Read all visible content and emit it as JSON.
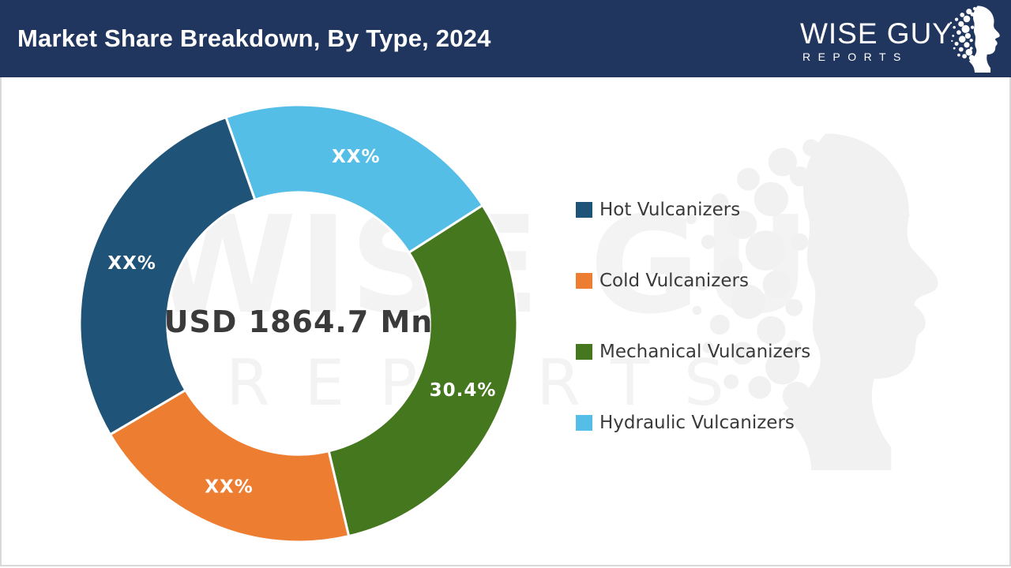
{
  "header": {
    "title": "Market Share Breakdown, By Type, 2024",
    "logo": {
      "line1": "WISE GUY",
      "line2": "REPORTS",
      "icon": "dotted-head-icon"
    }
  },
  "watermark": {
    "line1": "WISE GUY",
    "line2": "REPORTS",
    "icon": "dotted-head-icon"
  },
  "chart_data": {
    "type": "pie",
    "subtype": "donut",
    "title": "Market Share Breakdown, By Type, 2024",
    "center_label": "USD 1864.7 Mn",
    "start_angle_deg": -19.4,
    "direction": "clockwise",
    "inner_radius_ratio": 0.6,
    "legend_position": "right",
    "segments": [
      {
        "name": "Hydraulic Vulcanizers",
        "value_pct": 21.3,
        "label": "XX%",
        "color": "#54BEE7"
      },
      {
        "name": "Mechanical Vulcanizers",
        "value_pct": 30.4,
        "label": "30.4%",
        "color": "#45771F"
      },
      {
        "name": "Cold Vulcanizers",
        "value_pct": 20.2,
        "label": "XX%",
        "color": "#ED7D31"
      },
      {
        "name": "Hot Vulcanizers",
        "value_pct": 28.1,
        "label": "XX%",
        "color": "#1F5378"
      }
    ]
  },
  "legend": {
    "items": [
      {
        "label": "Hot Vulcanizers",
        "color": "#1F5378"
      },
      {
        "label": "Cold Vulcanizers",
        "color": "#ED7D31"
      },
      {
        "label": "Mechanical Vulcanizers",
        "color": "#45771F"
      },
      {
        "label": "Hydraulic Vulcanizers",
        "color": "#54BEE7"
      }
    ]
  },
  "colors": {
    "header_bg": "#21365F",
    "text_dark": "#3A3A3A",
    "watermark": "#F3F3F3",
    "separator": "#D9D9D9"
  }
}
